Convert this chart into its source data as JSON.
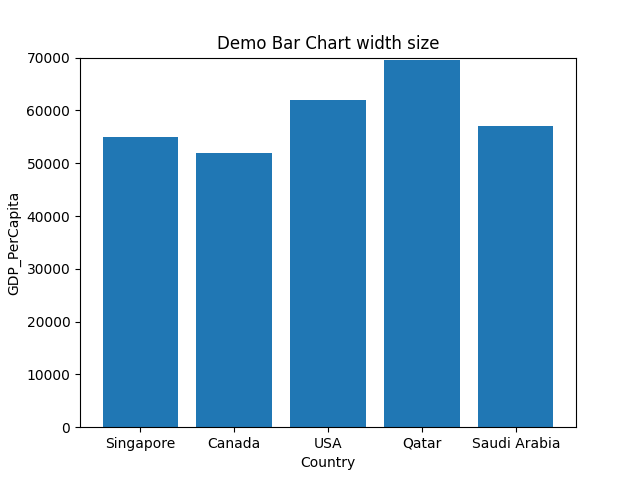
{
  "title": "Demo Bar Chart width size",
  "xlabel": "Country",
  "ylabel": "GDP_PerCapita",
  "categories": [
    "Singapore",
    "Canada",
    "USA",
    "Qatar",
    "Saudi Arabia"
  ],
  "values": [
    55000,
    52000,
    62000,
    69500,
    57000
  ],
  "bar_color": "#2077b4",
  "ylim": [
    0,
    70000
  ],
  "figsize": [
    6.4,
    4.8
  ],
  "dpi": 100,
  "bar_width": 0.8
}
